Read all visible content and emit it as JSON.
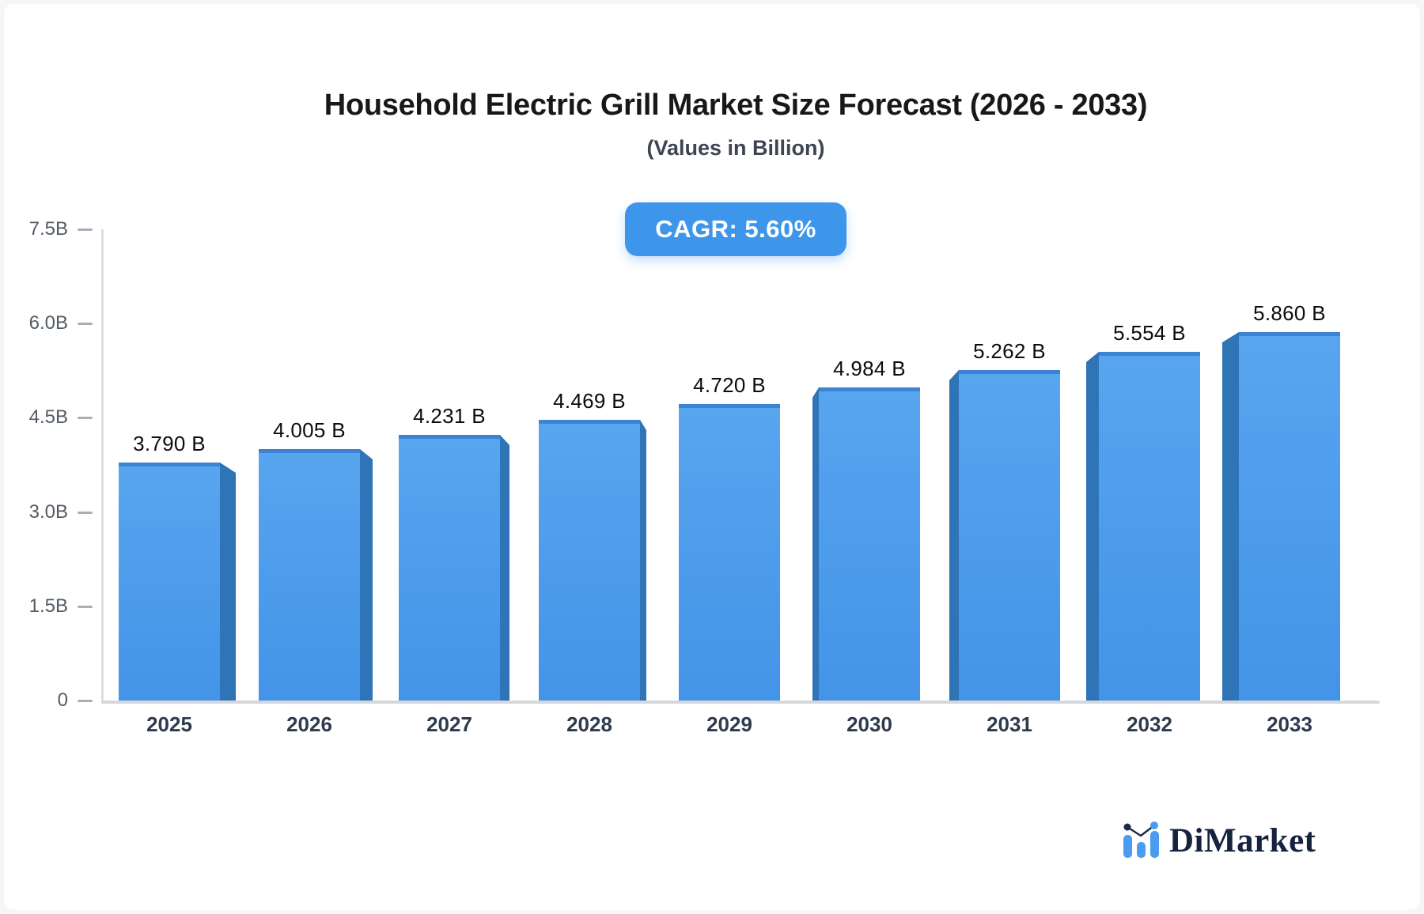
{
  "header": {
    "title": "Household Electric Grill Market Size Forecast (2026 - 2033)",
    "subtitle": "(Values in Billion)",
    "cagr_badge": "CAGR: 5.60%"
  },
  "chart_data": {
    "type": "bar",
    "title": "Household Electric Grill Market Size Forecast (2026 - 2033)",
    "subtitle": "(Values in Billion)",
    "cagr": "5.60%",
    "unit": "Billion",
    "categories": [
      "2025",
      "2026",
      "2027",
      "2028",
      "2029",
      "2030",
      "2031",
      "2032",
      "2033"
    ],
    "values": [
      3.79,
      4.005,
      4.231,
      4.469,
      4.72,
      4.984,
      5.262,
      5.554,
      5.86
    ],
    "value_labels": [
      "3.790 B",
      "4.005 B",
      "4.231 B",
      "4.469 B",
      "4.720 B",
      "4.984 B",
      "5.262 B",
      "5.554 B",
      "5.860 B"
    ],
    "xlabel": "",
    "ylabel": "",
    "ylim": [
      0,
      7.5
    ],
    "yticks": {
      "values": [
        0,
        1.5,
        3.0,
        4.5,
        6.0,
        7.5
      ],
      "labels": [
        "0",
        "1.5B",
        "3.0B",
        "4.5B",
        "6.0B",
        "7.5B"
      ]
    },
    "grid": false,
    "legend": false,
    "bar_style": "3d-extruded",
    "colors": {
      "bar_front_top": "#58a5ef",
      "bar_front_bottom": "#4394e8",
      "bar_top_edge": "#3c83d1",
      "bar_side": "#2f74b6"
    }
  },
  "axes": {
    "axis_line_color": "#d6d9de",
    "tick_color": "#a7aeb8",
    "y_label_color": "#535b66",
    "x_label_color": "#2e3b4e",
    "value_label_color": "#0c0c0c"
  },
  "badge": {
    "background": "#3e96ea",
    "text_color": "#ffffff"
  },
  "logo": {
    "text": "DiMarket",
    "icon": "bar-chart-logo-icon",
    "text_color": "#15233f",
    "icon_bar_color": "#4a9cf0",
    "icon_accent_color": "#1d2b49"
  }
}
